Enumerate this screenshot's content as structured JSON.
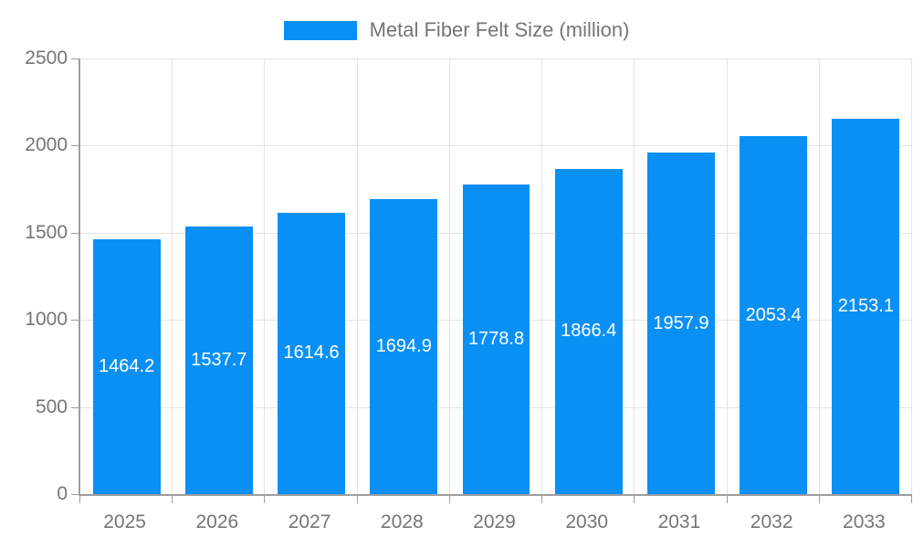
{
  "chart_data": {
    "type": "bar",
    "title": "Metal Fiber Felt Size (million)",
    "legend": {
      "position": "top",
      "entries": [
        "Metal Fiber Felt Size (million)"
      ]
    },
    "categories": [
      "2025",
      "2026",
      "2027",
      "2028",
      "2029",
      "2030",
      "2031",
      "2032",
      "2033"
    ],
    "values": [
      1464.2,
      1537.7,
      1614.6,
      1694.9,
      1778.8,
      1866.4,
      1957.9,
      2053.4,
      2153.1
    ],
    "xlabel": "",
    "ylabel": "",
    "ylim": [
      0,
      2500
    ],
    "y_ticks": [
      0,
      500,
      1000,
      1500,
      2000,
      2500
    ],
    "grid": "both",
    "colors": {
      "bar": "#0a90f5",
      "bar_value_text": "#ffffff",
      "axis_line": "#9e9e9e",
      "gridline": "#e3e3e3",
      "axis_text": "#757575",
      "legend_text": "#757575"
    }
  }
}
